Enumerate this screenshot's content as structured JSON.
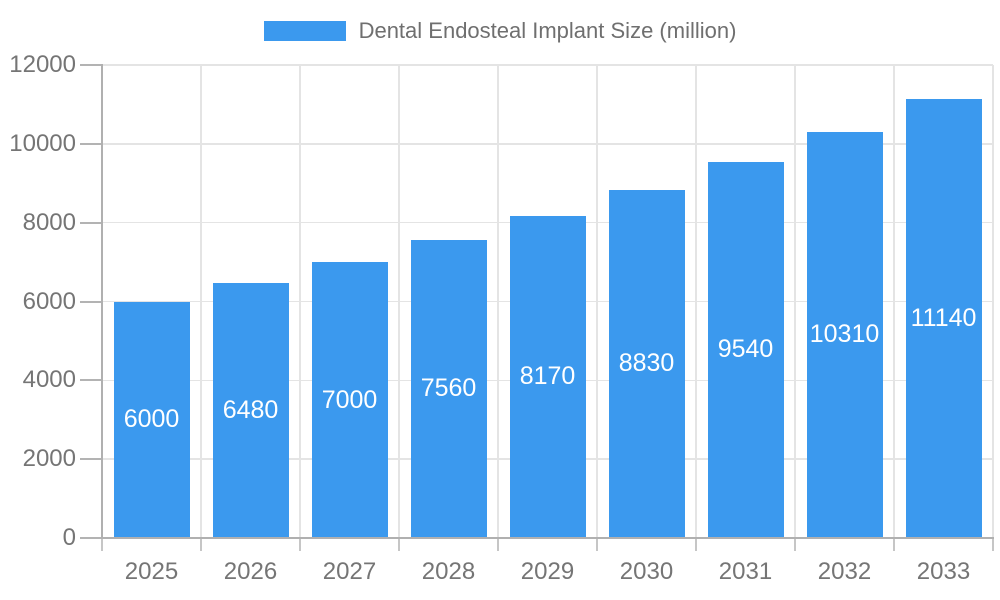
{
  "legend": {
    "label": "Dental Endosteal Implant Size (million)",
    "swatch_color": "#3B99EE"
  },
  "chart_data": {
    "type": "bar",
    "title": "Dental Endosteal Implant Size (million)",
    "categories": [
      "2025",
      "2026",
      "2027",
      "2028",
      "2029",
      "2030",
      "2031",
      "2032",
      "2033"
    ],
    "values": [
      6000,
      6480,
      7000,
      7560,
      8170,
      8830,
      9540,
      10310,
      11140
    ],
    "bar_labels": [
      "6000",
      "6480",
      "7000",
      "7560",
      "8170",
      "8830",
      "9540",
      "10310",
      "11140"
    ],
    "xlabel": "",
    "ylabel": "",
    "ylim": [
      0,
      12000
    ],
    "yticks": [
      0,
      2000,
      4000,
      6000,
      8000,
      10000,
      12000
    ],
    "ytick_labels": [
      "0",
      "2000",
      "4000",
      "6000",
      "8000",
      "10000",
      "12000"
    ],
    "grid": true,
    "legend_position": "top",
    "colors": {
      "bar": "#3B99EE",
      "bar_label": "#FFFFFF",
      "axis_text": "#757575",
      "gridline": "#E4E4E4",
      "axis_line": "#B0B0B0"
    }
  }
}
